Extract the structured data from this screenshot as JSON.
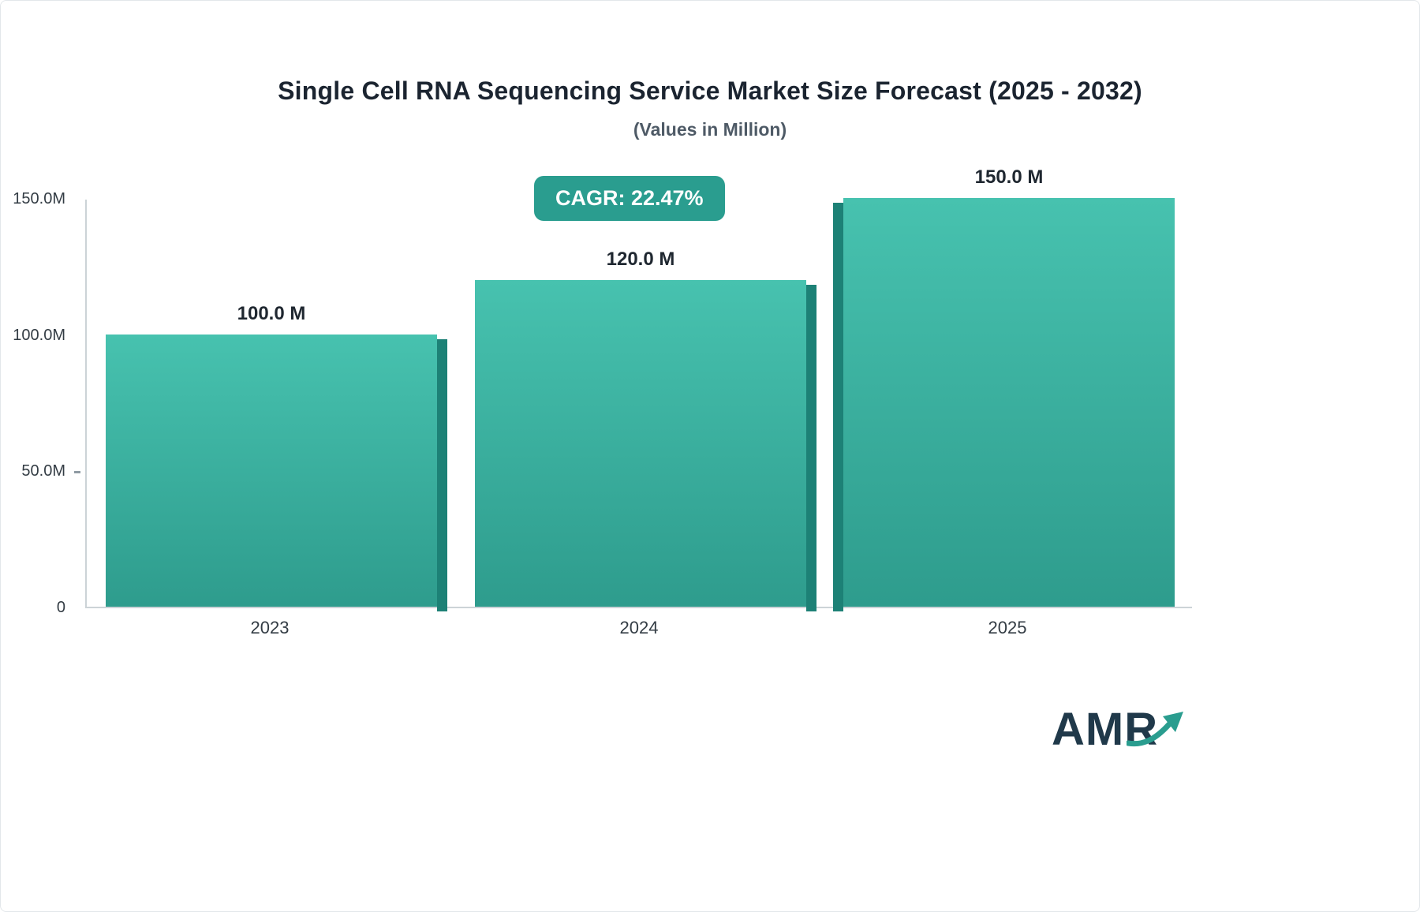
{
  "header": {
    "title": "Single Cell RNA Sequencing Service Market Size Forecast (2025 - 2032)",
    "subtitle": "(Values in Million)"
  },
  "badge": {
    "label": "CAGR: 22.47%"
  },
  "logo": {
    "text": "AMR"
  },
  "colors": {
    "accent": "#2a9d8f",
    "bar_top": "#47c2af",
    "bar_bottom": "#2e9c8d",
    "bar_edge": "#1d8176",
    "axis_line": "#ccd3d7",
    "title_text": "#1b2430",
    "subtitle_text": "#4e5a66",
    "tick_text": "#333c44",
    "logo_text": "#20394a"
  },
  "chart_data": {
    "type": "bar",
    "title": "Single Cell RNA Sequencing Service Market Size Forecast (2025 - 2032)",
    "subtitle": "(Values in Million)",
    "categories": [
      "2023",
      "2024",
      "2025"
    ],
    "values": [
      100.0,
      120.0,
      150.0
    ],
    "value_labels": [
      "100.0 M",
      "120.0 M",
      "150.0 M"
    ],
    "annotation": "CAGR: 22.47%",
    "xlabel": "",
    "ylabel": "",
    "ylim": [
      0,
      150
    ],
    "grid": false,
    "legend_position": "none",
    "yticks": [
      {
        "value": 150,
        "label": "150.0M",
        "tick": false
      },
      {
        "value": 100,
        "label": "100.0M",
        "tick": false
      },
      {
        "value": 50,
        "label": "50.0M",
        "tick": true
      },
      {
        "value": 0,
        "label": "0",
        "tick": false
      }
    ]
  }
}
